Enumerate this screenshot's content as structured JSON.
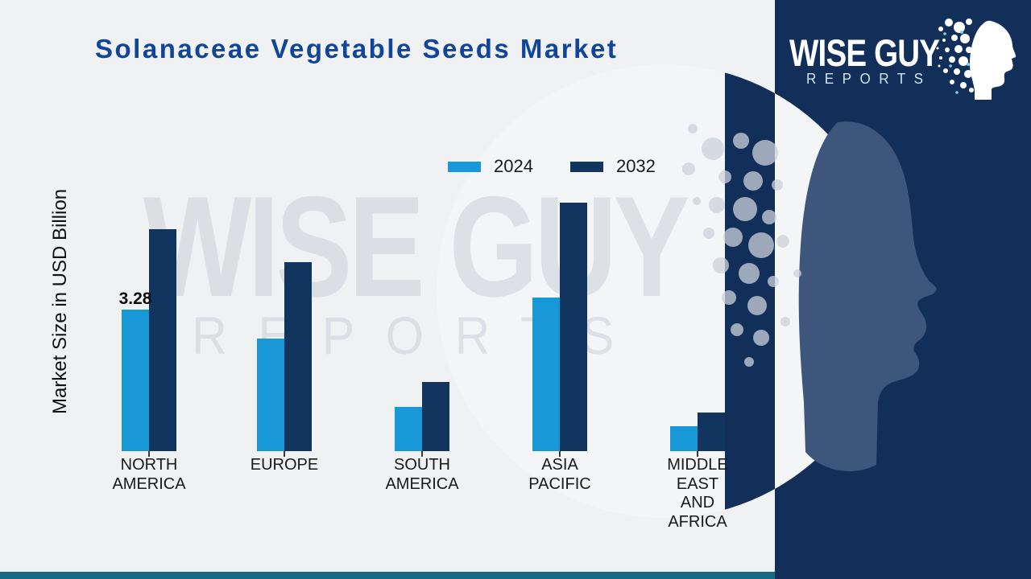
{
  "page": {
    "background_color": "#eff1f3",
    "bottom_bar_color": "#186a83",
    "panel_color": "#122f5a",
    "face_silhouette_color": "#3e557c",
    "title_color": "#11459a"
  },
  "header": {
    "title": "Solanaceae Vegetable Seeds Market"
  },
  "logo": {
    "brand_line1": "WISE GUY",
    "brand_line2": "REPORTS",
    "icon": "head-profile-dots-icon"
  },
  "watermark": {
    "line1": "WISE GUY",
    "line2": "REPORTS"
  },
  "chart_data": {
    "type": "bar",
    "title": "Solanaceae Vegetable Seeds Market",
    "xlabel": "",
    "ylabel": "Market Size in USD Billion",
    "unit": "USD Billion",
    "grid": false,
    "legend_position": "top-center",
    "ylim": [
      0,
      6
    ],
    "categories": [
      "NORTH AMERICA",
      "EUROPE",
      "SOUTH AMERICA",
      "ASIA PACIFIC",
      "MIDDLE EAST AND AFRICA"
    ],
    "category_lines": [
      [
        "NORTH",
        "AMERICA"
      ],
      [
        "EUROPE"
      ],
      [
        "SOUTH",
        "AMERICA"
      ],
      [
        "ASIA",
        "PACIFIC"
      ],
      [
        "MIDDLE",
        "EAST",
        "AND",
        "AFRICA"
      ]
    ],
    "series": [
      {
        "name": "2024",
        "color": "#1898d7",
        "values": [
          3.28,
          2.61,
          1.02,
          3.56,
          0.58
        ]
      },
      {
        "name": "2032",
        "color": "#123560",
        "values": [
          5.14,
          4.38,
          1.61,
          5.76,
          0.89
        ]
      }
    ],
    "annotations": [
      {
        "series_index": 0,
        "category_index": 0,
        "text": "3.28"
      }
    ]
  }
}
